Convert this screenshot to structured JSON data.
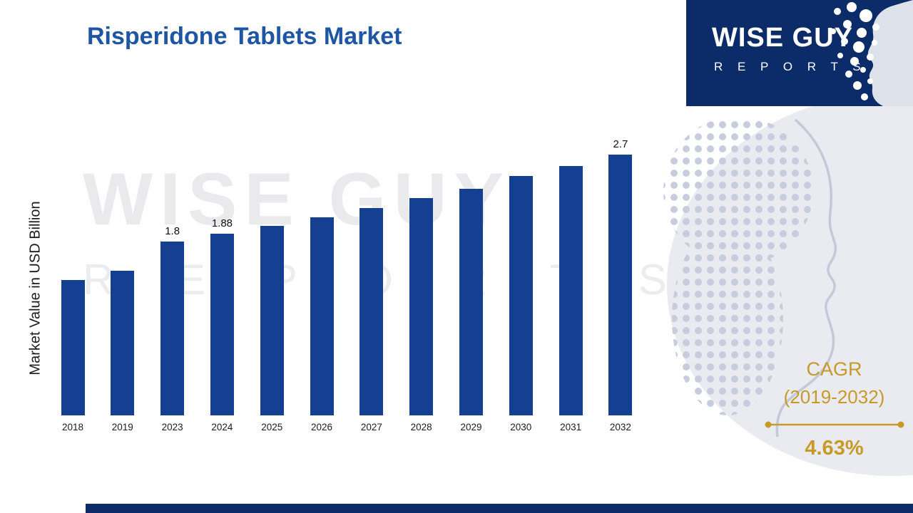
{
  "page": {
    "title": "Risperidone Tablets Market"
  },
  "logo": {
    "line1": "WISE GUY",
    "line2": "R E P O R T S"
  },
  "watermark": {
    "line1": "WISE GUY",
    "line2": "R E P O R T S"
  },
  "chart_data": {
    "type": "bar",
    "title": "Risperidone Tablets Market",
    "xlabel": "",
    "ylabel": "Market Value in USD Billion",
    "categories": [
      "2018",
      "2019",
      "2023",
      "2024",
      "2025",
      "2026",
      "2027",
      "2028",
      "2029",
      "2030",
      "2031",
      "2032"
    ],
    "values": [
      1.4,
      1.5,
      1.8,
      1.88,
      1.96,
      2.05,
      2.15,
      2.25,
      2.35,
      2.48,
      2.58,
      2.7
    ],
    "point_labels": [
      "",
      "",
      "1.8",
      "1.88",
      "",
      "",
      "",
      "",
      "",
      "",
      "",
      "2.7"
    ],
    "ylim": [
      0,
      3.1
    ],
    "grid": false,
    "legend": "none"
  },
  "cagr": {
    "label": "CAGR",
    "range": "(2019-2032)",
    "value": "4.63%"
  },
  "colors": {
    "bar": "#153f91",
    "title": "#1e56a4",
    "navy": "#0c2b69",
    "gold": "#c79a28",
    "watermark": "#d9dadf"
  }
}
